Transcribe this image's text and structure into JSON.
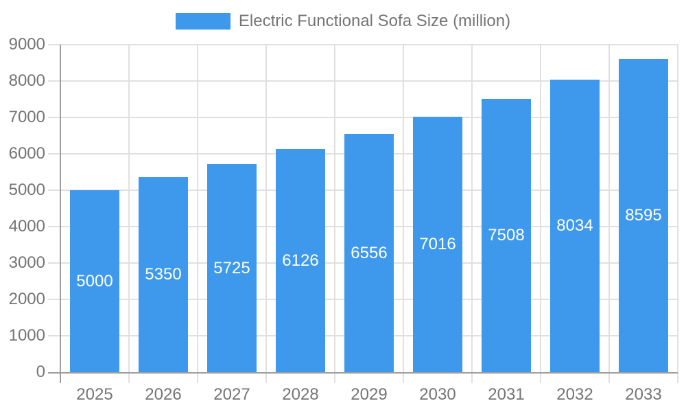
{
  "chart_data": {
    "type": "bar",
    "categories": [
      "2025",
      "2026",
      "2027",
      "2028",
      "2029",
      "2030",
      "2031",
      "2032",
      "2033"
    ],
    "values": [
      5000,
      5350,
      5725,
      6126,
      6556,
      7016,
      7508,
      8034,
      8595
    ],
    "legend_label": "Electric Functional Sofa Size (million)",
    "title": "",
    "xlabel": "",
    "ylabel": "",
    "ylim": [
      0,
      9000
    ],
    "ytick_step": 1000,
    "yticks": [
      0,
      1000,
      2000,
      3000,
      4000,
      5000,
      6000,
      7000,
      8000,
      9000
    ],
    "grid": true,
    "legend_position": "top-center",
    "bar_labels_visible": true,
    "colors": {
      "bar": "#3e99ed",
      "grid_line": "#e0e0e0",
      "axis_line": "#9e9e9e",
      "tick_text": "#757575",
      "bar_label_text": "#ffffff",
      "background": "#ffffff"
    }
  }
}
